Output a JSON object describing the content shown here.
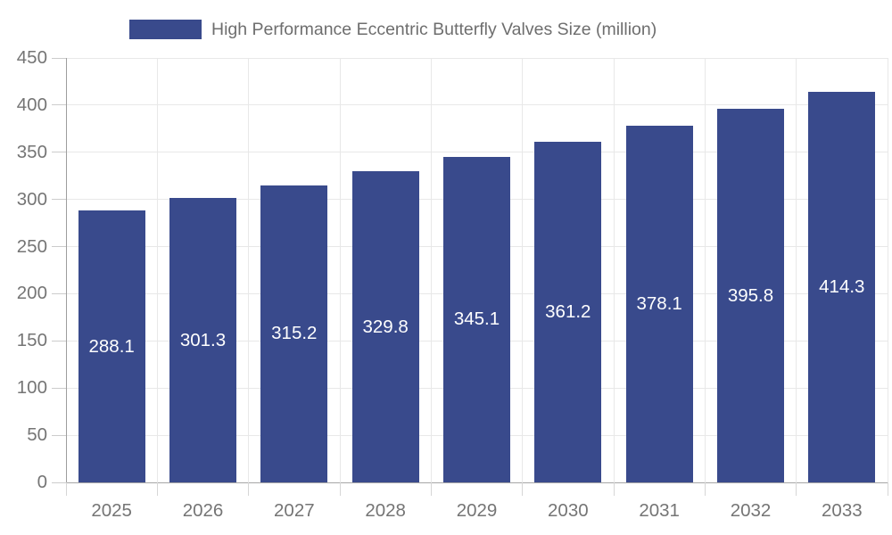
{
  "chart_data": {
    "type": "bar",
    "title": "High Performance Eccentric Butterfly Valves Size (million)",
    "categories": [
      "2025",
      "2026",
      "2027",
      "2028",
      "2029",
      "2030",
      "2031",
      "2032",
      "2033"
    ],
    "values": [
      288.1,
      301.3,
      315.2,
      329.8,
      345.1,
      361.2,
      378.1,
      395.8,
      414.3
    ],
    "xlabel": "",
    "ylabel": "",
    "ylim": [
      0,
      450
    ],
    "ytick_step": 50,
    "grid": true,
    "legend_position": "top",
    "value_labels": "inside-center",
    "colors": {
      "bar": "#394A8C",
      "value_label": "#FFFFFF",
      "axis_line_x": "#A6A6A6",
      "axis_line_y": "#9E9E9E",
      "grid_line": "#E8E8E8",
      "tick_mark": "#CCCCCC",
      "tick_label": "#757575",
      "legend_text": "#6E6E6E",
      "background": "#FFFFFF"
    }
  }
}
